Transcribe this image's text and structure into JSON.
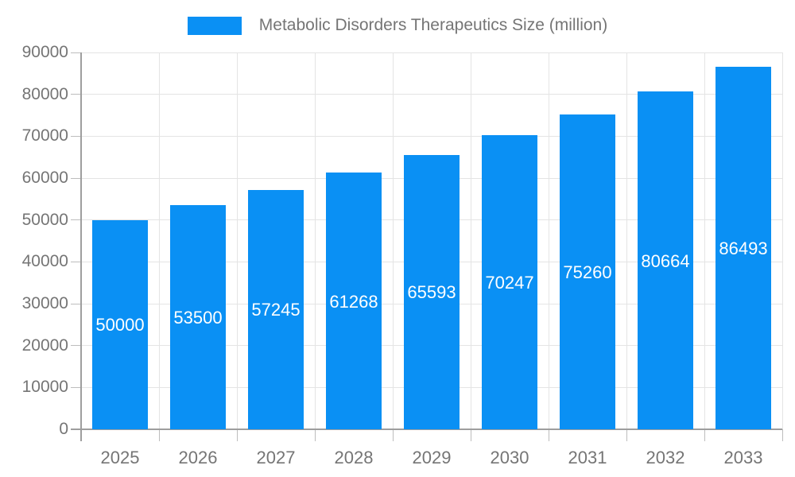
{
  "chart_data": {
    "type": "bar",
    "title": "",
    "legend_label": "Metabolic Disorders Therapeutics Size (million)",
    "legend_position": "top",
    "categories": [
      "2025",
      "2026",
      "2027",
      "2028",
      "2029",
      "2030",
      "2031",
      "2032",
      "2033"
    ],
    "values": [
      50000,
      53500,
      57245,
      61268,
      65593,
      70247,
      75260,
      80664,
      86493
    ],
    "xlabel": "",
    "ylabel": "",
    "ylim": [
      0,
      90000
    ],
    "ytick_interval": 10000,
    "yticks": [
      0,
      10000,
      20000,
      30000,
      40000,
      50000,
      60000,
      70000,
      80000,
      90000
    ],
    "grid": true,
    "colors": {
      "bar": "#0a90f4",
      "bar_value_text": "#ffffff",
      "axis_text": "#757575",
      "gridline": "#e4e4e4",
      "axis_line": "#9e9e9e",
      "tick": "#bdbdbd",
      "background": "#ffffff"
    }
  }
}
